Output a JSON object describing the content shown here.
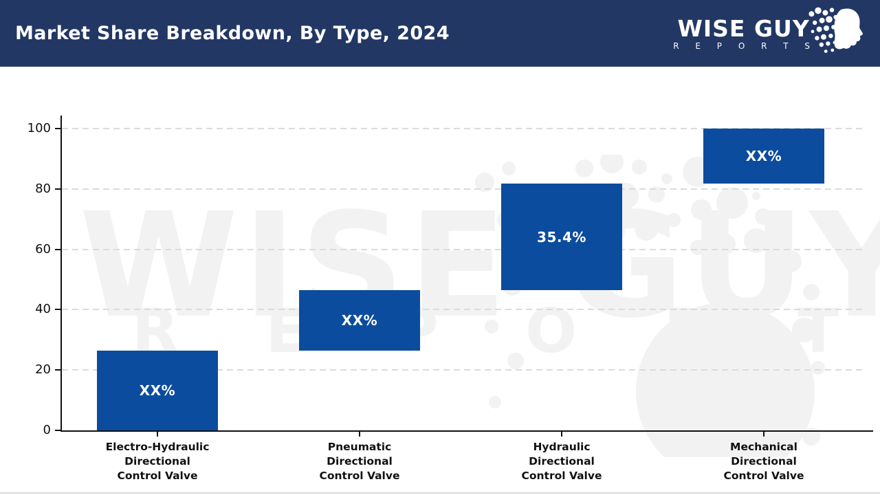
{
  "header": {
    "title": "Market Share Breakdown, By Type, 2024",
    "logo": {
      "name": "WISE GUY REPORTS",
      "line1": "WISE GUY",
      "line2": "R E P O R T S"
    }
  },
  "watermark": {
    "line1": "WISE GUY",
    "line2": "R E P O R T S"
  },
  "colors": {
    "header_bg": "#223764",
    "bar": "#0C4C9E",
    "bar_label": "#FFFFFF",
    "axis": "#111111",
    "grid": "#DBDBDB",
    "tick_label": "#111111",
    "category_label": "#111111",
    "watermark": "#F2F2F2",
    "bottom_rule": "#D9D9D9"
  },
  "chart_data": {
    "type": "bar",
    "variant": "floating-waterfall",
    "title": "Market Share Breakdown, By Type, 2024",
    "categories": [
      "Electro-Hydraulic\nDirectional\nControl Valve",
      "Pneumatic\nDirectional\nControl Valve",
      "Hydraulic\nDirectional\nControl Valve",
      "Mechanical\nDirectional\nControl Valve"
    ],
    "segments": [
      {
        "start": 0,
        "end": 26.4,
        "label": "XX%"
      },
      {
        "start": 26.4,
        "end": 46.4,
        "label": "XX%"
      },
      {
        "start": 46.4,
        "end": 81.8,
        "label": "35.4%"
      },
      {
        "start": 81.8,
        "end": 100,
        "label": "XX%"
      }
    ],
    "yticks": [
      0,
      20,
      40,
      60,
      80,
      100
    ],
    "ylim": [
      0,
      100
    ],
    "xlabel": "",
    "ylabel": "",
    "grid": "horizontal-dashed",
    "legend": "none"
  }
}
